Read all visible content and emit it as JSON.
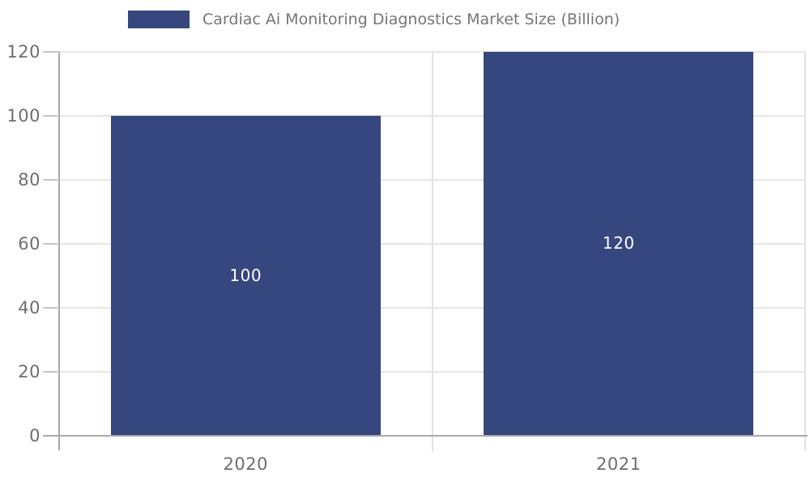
{
  "legend": {
    "label": "Cardiac Ai Monitoring Diagnostics Market Size (Billion)"
  },
  "chart_data": {
    "type": "bar",
    "title": "Cardiac Ai Monitoring Diagnostics Market Size (Billion)",
    "categories": [
      "2020",
      "2021"
    ],
    "values": [
      100,
      120
    ],
    "value_labels": [
      "100",
      "120"
    ],
    "xlabel": "",
    "ylabel": "",
    "ylim": [
      0,
      120
    ],
    "yticks": [
      0,
      20,
      40,
      60,
      80,
      100,
      120
    ],
    "grid": true,
    "legend_position": "top-center"
  },
  "colors": {
    "bar": "#36467e",
    "value_label_text": "#ffffff",
    "legend_text": "#757575",
    "tick_text": "#6e6e6e",
    "grid_line_h": "#e5e5e5",
    "grid_line_v": "#e2e2e8",
    "axis_line": "#a8a8a8",
    "tick_mark": "#c6c6c6",
    "background": "#ffffff"
  }
}
